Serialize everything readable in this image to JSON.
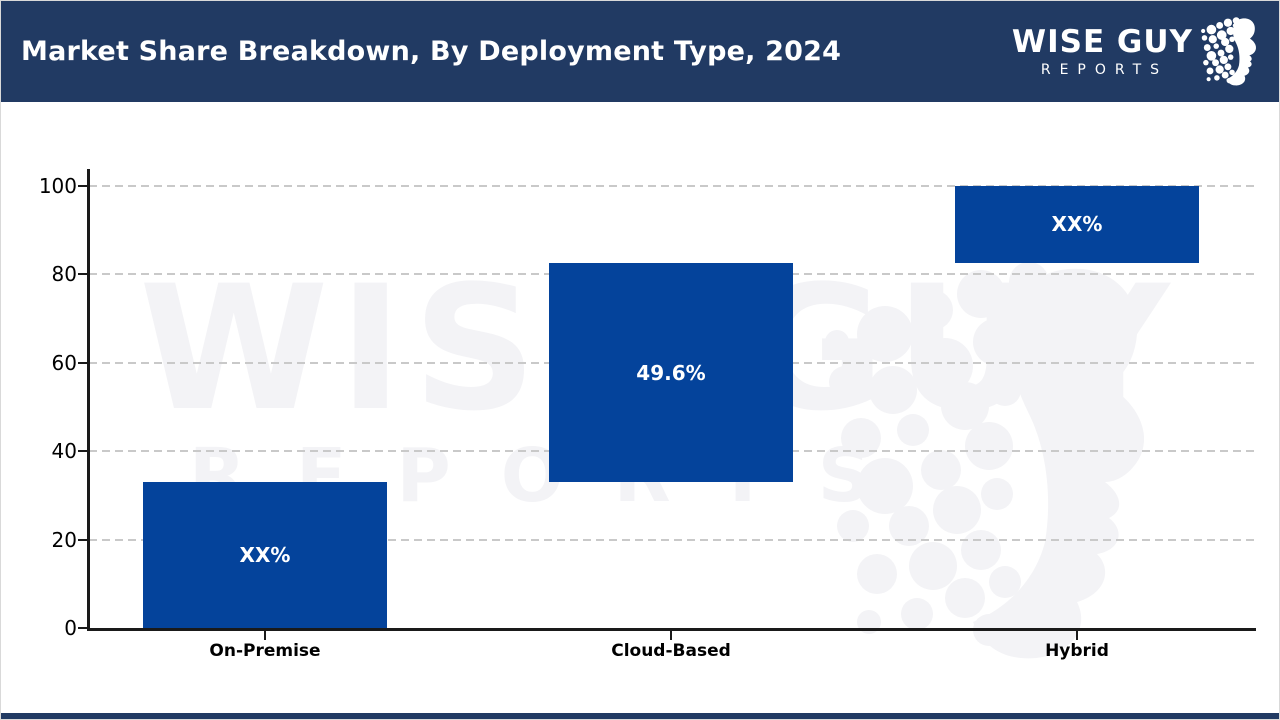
{
  "header": {
    "title": "Market Share Breakdown, By Deployment Type, 2024",
    "bg_color": "#213a63",
    "logo": {
      "line1": "WISE GUY",
      "line2": "REPORTS"
    }
  },
  "watermark": {
    "line1": "WISE GUY",
    "line2": "REPORTS"
  },
  "chart_data": {
    "type": "bar",
    "subtype": "waterfall",
    "title": "Market Share Breakdown, By Deployment Type, 2024",
    "categories": [
      "On-Premise",
      "Cloud-Based",
      "Hybrid"
    ],
    "segments": [
      {
        "category": "On-Premise",
        "start": 0,
        "end": 33.0,
        "label": "XX%"
      },
      {
        "category": "Cloud-Based",
        "start": 33.0,
        "end": 82.6,
        "label": "49.6%"
      },
      {
        "category": "Hybrid",
        "start": 82.6,
        "end": 100,
        "label": "XX%"
      }
    ],
    "bar_color": "#04439b",
    "bar_label_color": "#ffffff",
    "yticks": [
      0,
      20,
      40,
      60,
      80,
      100
    ],
    "ylim": [
      0,
      103.5
    ],
    "xlabel": "",
    "ylabel": "",
    "grid": {
      "axis": "y",
      "style": "dashed",
      "color": "#c9c9c9"
    },
    "legend": null
  }
}
